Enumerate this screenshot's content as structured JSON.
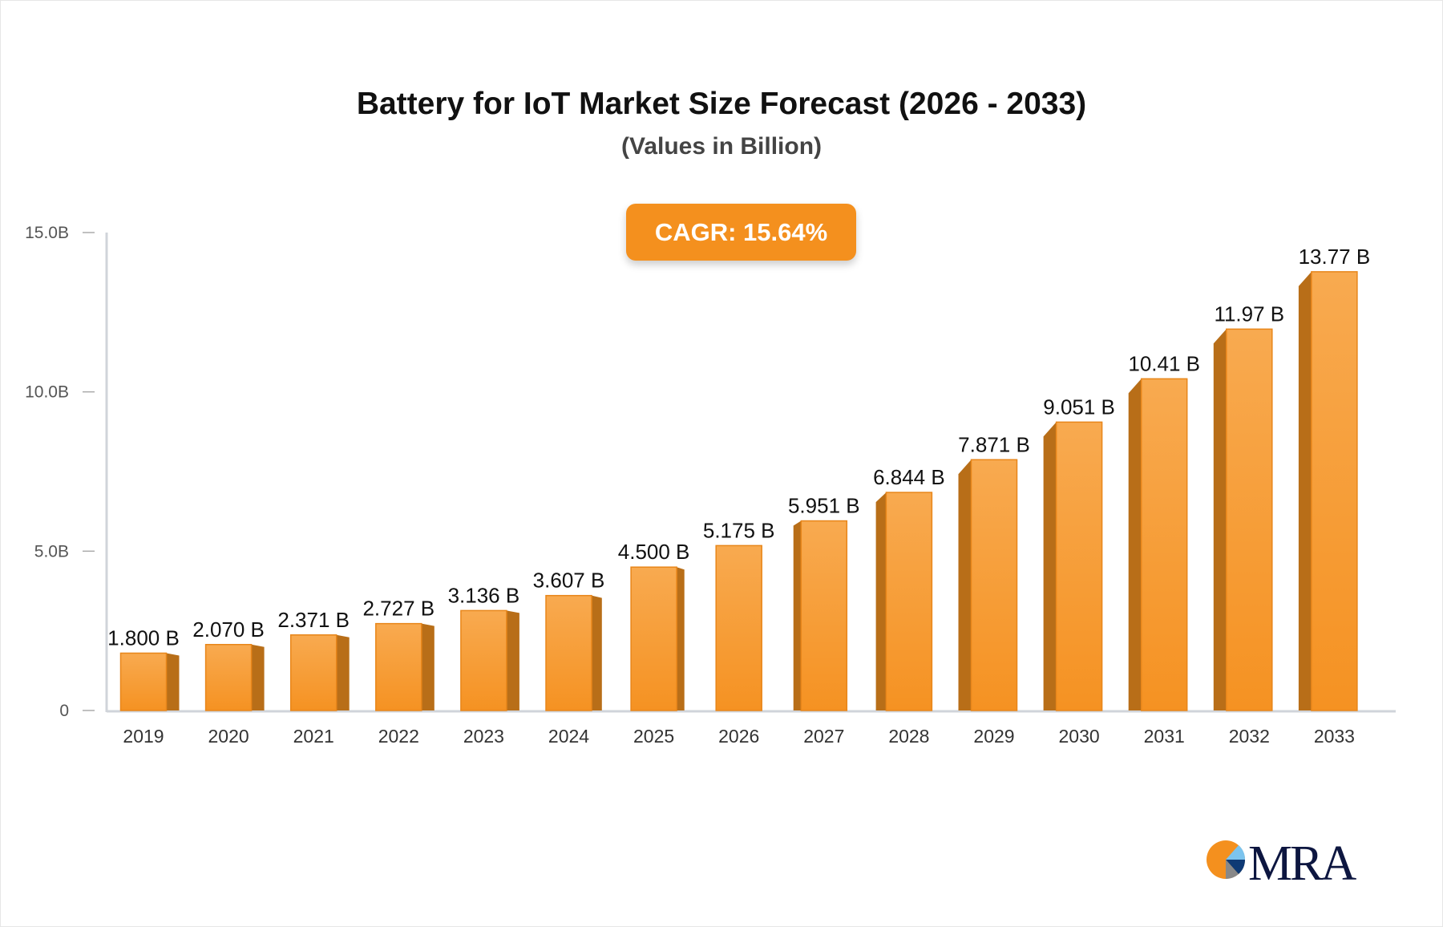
{
  "chart_data": {
    "type": "bar",
    "title": "Battery for IoT Market Size Forecast (2026 - 2033)",
    "subtitle": "(Values in Billion)",
    "annotation": "CAGR: 15.64%",
    "categories": [
      "2019",
      "2020",
      "2021",
      "2022",
      "2023",
      "2024",
      "2025",
      "2026",
      "2027",
      "2028",
      "2029",
      "2030",
      "2031",
      "2032",
      "2033"
    ],
    "values": [
      1.8,
      2.07,
      2.371,
      2.727,
      3.136,
      3.607,
      4.5,
      5.175,
      5.951,
      6.844,
      7.871,
      9.051,
      10.41,
      11.97,
      13.77
    ],
    "data_labels": [
      "1.800 B",
      "2.070 B",
      "2.371 B",
      "2.727 B",
      "3.136 B",
      "3.607 B",
      "4.500 B",
      "5.175 B",
      "5.951 B",
      "6.844 B",
      "7.871 B",
      "9.051 B",
      "10.41 B",
      "11.97 B",
      "13.77 B"
    ],
    "yticks": [
      0,
      5,
      10,
      15
    ],
    "ytick_labels": [
      "0",
      "5.0B",
      "10.0B",
      "15.0B"
    ],
    "ylim": [
      0,
      15
    ],
    "xlabel": "",
    "ylabel": "",
    "grid": false,
    "colors": {
      "bar_front": "#f7a040",
      "bar_side": "#b86e18",
      "axis": "#d0d4da"
    }
  },
  "logo": {
    "text": "MRA"
  }
}
